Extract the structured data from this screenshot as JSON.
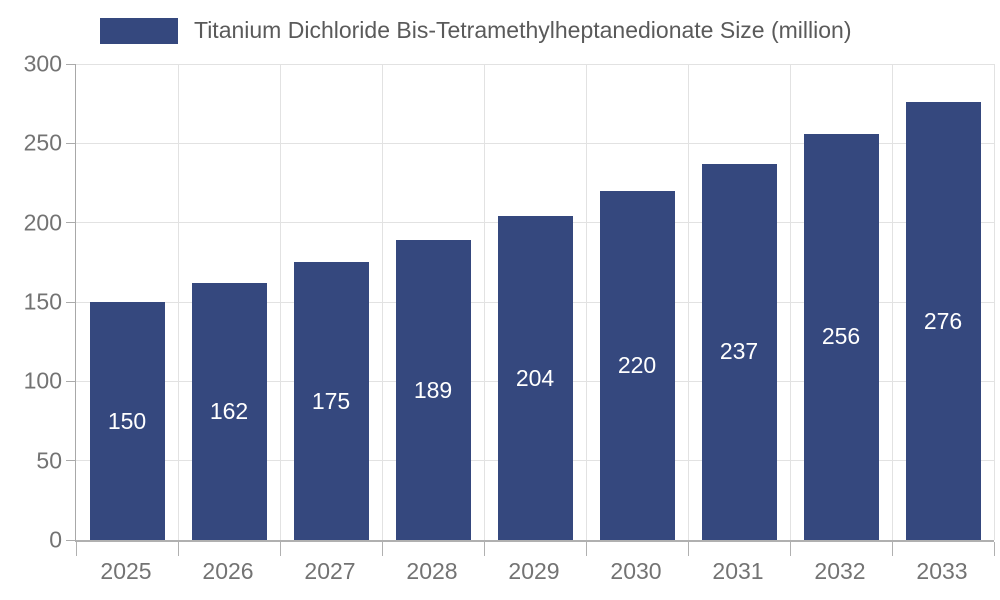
{
  "chart_data": {
    "type": "bar",
    "legend": "Titanium Dichloride Bis-Tetramethylheptanedionate Size (million)",
    "categories": [
      "2025",
      "2026",
      "2027",
      "2028",
      "2029",
      "2030",
      "2031",
      "2032",
      "2033"
    ],
    "values": [
      150,
      162,
      175,
      189,
      204,
      220,
      237,
      256,
      276
    ],
    "title": "",
    "xlabel": "",
    "ylabel": "",
    "ylim": [
      0,
      300
    ],
    "yticks": [
      0,
      50,
      100,
      150,
      200,
      250,
      300
    ],
    "grid": true,
    "legend_position": "top",
    "bar_color": "#35487e",
    "value_label_color": "#ffffff",
    "axis_label_color": "#737373",
    "legend_text_color": "#5a5a5a",
    "gridline_color": "#e2e2e2"
  }
}
